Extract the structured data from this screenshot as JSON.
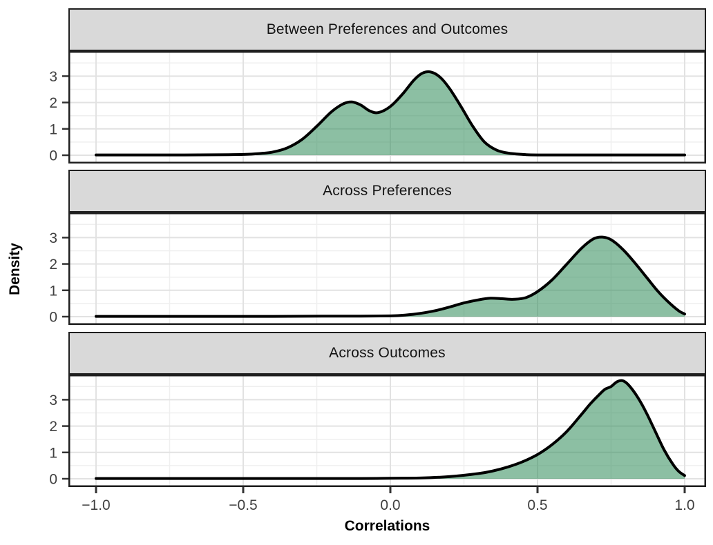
{
  "chart_data": {
    "type": "area",
    "subtype": "faceted-density",
    "title": "",
    "xlabel": "Correlations",
    "ylabel": "Density",
    "legend": "none",
    "grid": {
      "x_major": [
        -1.0,
        -0.5,
        0.0,
        0.5,
        1.0
      ],
      "x_minor": [
        -0.75,
        -0.25,
        0.25,
        0.75
      ],
      "y_major": [
        0,
        1,
        2,
        3
      ],
      "y_minor": [
        0.5,
        1.5,
        2.5,
        3.5
      ]
    },
    "x_ticks": [
      {
        "value": -1.0,
        "label": "−1.0"
      },
      {
        "value": -0.5,
        "label": "−0.5"
      },
      {
        "value": 0.0,
        "label": "0.0"
      },
      {
        "value": 0.5,
        "label": "0.5"
      },
      {
        "value": 1.0,
        "label": "1.0"
      }
    ],
    "y_ticks": [
      0,
      1,
      2,
      3
    ],
    "xlim": [
      -1.095,
      1.073
    ],
    "ylim": [
      -0.31,
      3.95
    ],
    "facets": [
      {
        "label": "Between Preferences and Outcomes",
        "peaks": [
          {
            "x": -0.13,
            "density": 2.0
          },
          {
            "x": 0.12,
            "density": 3.15
          }
        ],
        "points": [
          [
            -1.0,
            0.01
          ],
          [
            -0.7,
            0.01
          ],
          [
            -0.55,
            0.02
          ],
          [
            -0.5,
            0.03
          ],
          [
            -0.45,
            0.06
          ],
          [
            -0.4,
            0.12
          ],
          [
            -0.35,
            0.28
          ],
          [
            -0.3,
            0.6
          ],
          [
            -0.25,
            1.1
          ],
          [
            -0.2,
            1.65
          ],
          [
            -0.16,
            1.95
          ],
          [
            -0.13,
            2.02
          ],
          [
            -0.1,
            1.9
          ],
          [
            -0.07,
            1.68
          ],
          [
            -0.04,
            1.62
          ],
          [
            0.0,
            1.85
          ],
          [
            0.04,
            2.3
          ],
          [
            0.08,
            2.85
          ],
          [
            0.11,
            3.12
          ],
          [
            0.14,
            3.15
          ],
          [
            0.17,
            2.95
          ],
          [
            0.2,
            2.55
          ],
          [
            0.24,
            1.85
          ],
          [
            0.28,
            1.1
          ],
          [
            0.32,
            0.5
          ],
          [
            0.36,
            0.2
          ],
          [
            0.4,
            0.08
          ],
          [
            0.45,
            0.03
          ],
          [
            0.5,
            0.01
          ],
          [
            0.7,
            0.01
          ],
          [
            1.0,
            0.01
          ]
        ]
      },
      {
        "label": "Across Preferences",
        "peaks": [
          {
            "x": 0.34,
            "density": 0.7
          },
          {
            "x": 0.72,
            "density": 3.0
          }
        ],
        "points": [
          [
            -1.0,
            0.01
          ],
          [
            -0.4,
            0.01
          ],
          [
            -0.2,
            0.02
          ],
          [
            -0.1,
            0.02
          ],
          [
            0.0,
            0.03
          ],
          [
            0.05,
            0.06
          ],
          [
            0.1,
            0.12
          ],
          [
            0.15,
            0.22
          ],
          [
            0.2,
            0.36
          ],
          [
            0.25,
            0.52
          ],
          [
            0.3,
            0.64
          ],
          [
            0.34,
            0.7
          ],
          [
            0.38,
            0.68
          ],
          [
            0.42,
            0.66
          ],
          [
            0.46,
            0.72
          ],
          [
            0.5,
            0.95
          ],
          [
            0.55,
            1.4
          ],
          [
            0.6,
            2.0
          ],
          [
            0.65,
            2.6
          ],
          [
            0.69,
            2.95
          ],
          [
            0.72,
            3.02
          ],
          [
            0.75,
            2.92
          ],
          [
            0.79,
            2.55
          ],
          [
            0.83,
            2.05
          ],
          [
            0.87,
            1.5
          ],
          [
            0.91,
            0.95
          ],
          [
            0.95,
            0.5
          ],
          [
            0.98,
            0.22
          ],
          [
            1.0,
            0.1
          ]
        ]
      },
      {
        "label": "Across Outcomes",
        "peaks": [
          {
            "x": 0.78,
            "density": 3.7
          }
        ],
        "points": [
          [
            -1.0,
            0.01
          ],
          [
            -0.2,
            0.01
          ],
          [
            0.0,
            0.02
          ],
          [
            0.1,
            0.03
          ],
          [
            0.2,
            0.08
          ],
          [
            0.3,
            0.2
          ],
          [
            0.35,
            0.3
          ],
          [
            0.4,
            0.45
          ],
          [
            0.45,
            0.65
          ],
          [
            0.5,
            0.92
          ],
          [
            0.55,
            1.3
          ],
          [
            0.6,
            1.8
          ],
          [
            0.65,
            2.45
          ],
          [
            0.68,
            2.85
          ],
          [
            0.71,
            3.2
          ],
          [
            0.73,
            3.4
          ],
          [
            0.75,
            3.5
          ],
          [
            0.77,
            3.68
          ],
          [
            0.79,
            3.72
          ],
          [
            0.81,
            3.55
          ],
          [
            0.84,
            3.1
          ],
          [
            0.87,
            2.5
          ],
          [
            0.9,
            1.8
          ],
          [
            0.93,
            1.1
          ],
          [
            0.96,
            0.55
          ],
          [
            0.98,
            0.28
          ],
          [
            1.0,
            0.12
          ]
        ]
      }
    ],
    "style": {
      "fill_color": "#2e8b57",
      "fill_opacity": 0.55,
      "line_color": "#000000",
      "line_width": 4,
      "panel_border_color": "#1f1f1f",
      "strip_bg": "#d9d9d9",
      "strip_text_color": "#141414",
      "grid_major_color": "#e2e2e2",
      "grid_minor_color": "#efefef",
      "tick_mark_color": "#333333",
      "tick_label_color": "#404040"
    }
  }
}
